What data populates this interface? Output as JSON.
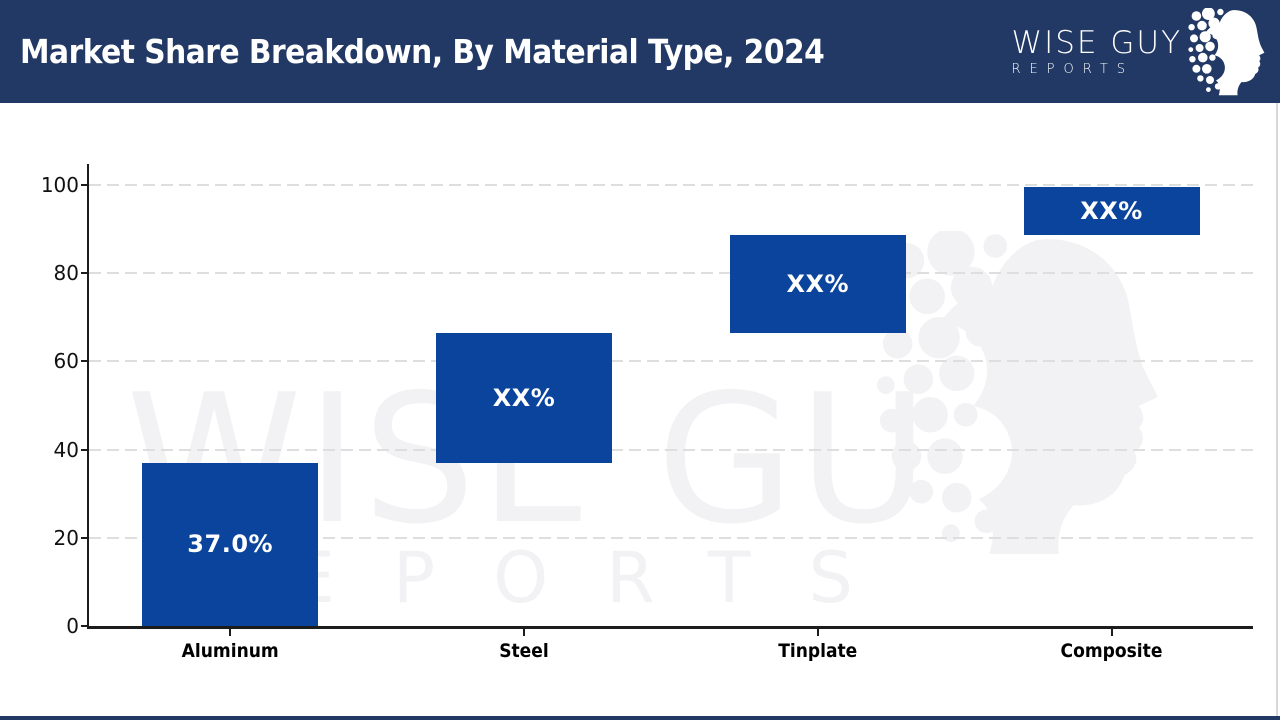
{
  "header": {
    "title": "Market Share Breakdown, By Material Type, 2024",
    "logo": {
      "line1": "WISE GUY",
      "line2": "REPORTS",
      "face_icon": "dotted-head-profile"
    }
  },
  "watermark": {
    "line1": "WISE GU",
    "line2": "REPORTS",
    "face_icon": "dotted-head-profile"
  },
  "colors": {
    "header_bg": "#223865",
    "footer_bar": "#223865",
    "bar_fill": "#0a449c",
    "bar_label": "#ffffff",
    "gridline": "#dedede",
    "axis": "#1c1c1c",
    "watermark": "#f2f2f4",
    "title_text": "#ffffff"
  },
  "chart_data": {
    "type": "bar",
    "subtype": "floating-waterfall",
    "title": "Market Share Breakdown, By Material Type, 2024",
    "xlabel": "",
    "ylabel": "",
    "categories": [
      "Aluminum",
      "Steel",
      "Tinplate",
      "Composite"
    ],
    "segments": [
      {
        "category": "Aluminum",
        "start": 0,
        "end": 37,
        "label": "37.0%"
      },
      {
        "category": "Steel",
        "start": 37,
        "end": 66.5,
        "label": "XX%"
      },
      {
        "category": "Tinplate",
        "start": 66.5,
        "end": 88.7,
        "label": "XX%"
      },
      {
        "category": "Composite",
        "start": 88.7,
        "end": 99.5,
        "label": "XX%"
      }
    ],
    "yticks": [
      0,
      20,
      40,
      60,
      80,
      100
    ],
    "ylim": [
      0,
      105
    ],
    "grid": "horizontal-dashed",
    "legend": "none"
  }
}
